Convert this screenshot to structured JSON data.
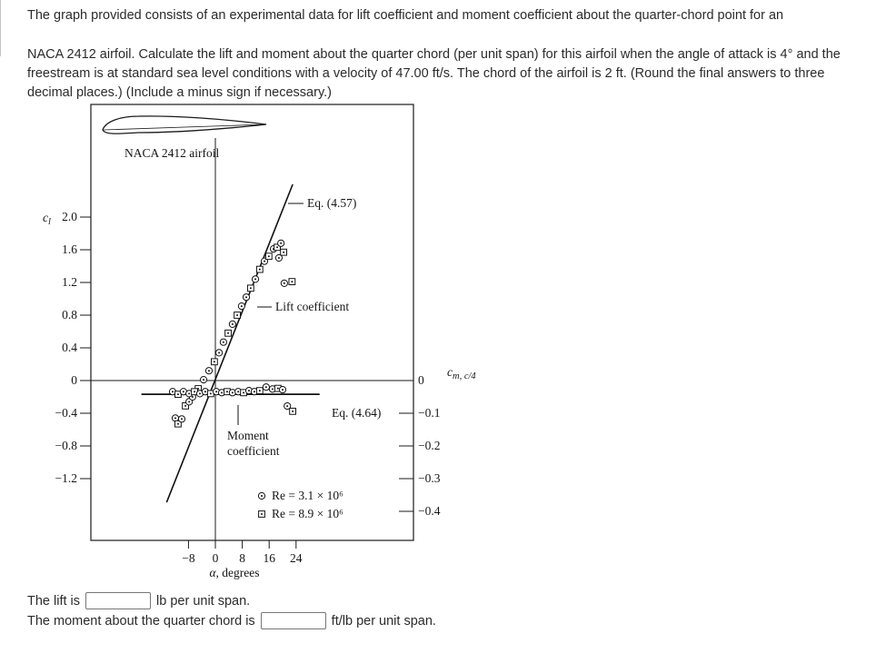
{
  "question": {
    "para1": "The graph provided consists of an experimental data for lift coefficient and moment coefficient about the quarter-chord point for an",
    "para2": "NACA 2412 airfoil. Calculate the lift and moment about the quarter chord (per unit span) for this airfoil when the angle of attack is 4° and the freestream is at standard sea level conditions with a velocity of 47.00 ft/s. The chord of the airfoil is 2 ft. (Round the final answers to three decimal places.) (Include a minus sign if necessary.)"
  },
  "answers": {
    "lift_prefix": "The lift is",
    "lift_suffix": "lb per unit span.",
    "lift_value": "",
    "moment_prefix": "The moment about the quarter chord is",
    "moment_suffix": "ft/lb per unit span.",
    "moment_value": ""
  },
  "chart_data": {
    "type": "scatter",
    "title": "NACA 2412 airfoil",
    "xlabel": "α, degrees",
    "ylabel_left": {
      "main": "c",
      "sub": "l"
    },
    "ylabel_right": {
      "main": "c",
      "sub": "m, c/4"
    },
    "x_tick_labels": [
      "−8",
      "0",
      "8",
      "16",
      "24"
    ],
    "x_tick_values": [
      -8,
      0,
      8,
      16,
      24
    ],
    "y_left_tick_labels": [
      "2.0",
      "1.6",
      "1.2",
      "0.8",
      "0.4",
      "0",
      "−0.4",
      "−0.8",
      "−1.2"
    ],
    "y_left_tick_values": [
      2.0,
      1.6,
      1.2,
      0.8,
      0.4,
      0,
      -0.4,
      -0.8,
      -1.2
    ],
    "y_right_tick_labels": [
      "0",
      "−0.1",
      "−0.2",
      "−0.3",
      "−0.4"
    ],
    "y_right_tick_values": [
      0,
      -0.1,
      -0.2,
      -0.3,
      -0.4
    ],
    "annotations": {
      "eq_lift": "Eq. (4.57)",
      "lift_label": "Lift coefficient",
      "moment_label_line1": "Moment",
      "moment_label_line2": "coefficient",
      "eq_moment": "Eq. (4.64)"
    },
    "legend": [
      {
        "marker": "circle-dot",
        "label": "Re = 3.1 × 10⁶"
      },
      {
        "marker": "square-dot",
        "label": "Re = 8.9 × 10⁶"
      }
    ],
    "lift_line_points_alpha_cl": [
      [
        -14.5,
        -1.49
      ],
      [
        23.0,
        2.4
      ]
    ],
    "moment_line": {
      "alpha_range": [
        -22,
        31
      ],
      "cm": -0.042
    },
    "lift_data": [
      [
        -11.9,
        -0.46,
        "c"
      ],
      [
        -11.1,
        -0.53,
        "s"
      ],
      [
        -10.0,
        -0.47,
        "c"
      ],
      [
        -8.9,
        -0.31,
        "s"
      ],
      [
        -7.8,
        -0.26,
        "c"
      ],
      [
        -6.8,
        -0.2,
        "c"
      ],
      [
        -5.1,
        -0.1,
        "s"
      ],
      [
        -3.5,
        0.01,
        "c"
      ],
      [
        -1.9,
        0.12,
        "c"
      ],
      [
        -0.3,
        0.23,
        "s"
      ],
      [
        1.1,
        0.34,
        "c"
      ],
      [
        2.4,
        0.47,
        "c"
      ],
      [
        3.8,
        0.58,
        "s"
      ],
      [
        5.1,
        0.69,
        "c"
      ],
      [
        6.5,
        0.8,
        "s"
      ],
      [
        7.8,
        0.91,
        "c"
      ],
      [
        9.2,
        1.02,
        "c"
      ],
      [
        10.5,
        1.13,
        "s"
      ],
      [
        11.9,
        1.24,
        "c"
      ],
      [
        13.2,
        1.36,
        "s"
      ],
      [
        14.6,
        1.46,
        "c"
      ],
      [
        15.9,
        1.52,
        "s"
      ],
      [
        17.3,
        1.61,
        "c"
      ],
      [
        18.4,
        1.63,
        "s"
      ],
      [
        19.5,
        1.68,
        "c"
      ],
      [
        20.3,
        1.57,
        "s"
      ],
      [
        18.9,
        1.5,
        "c"
      ],
      [
        20.5,
        1.19,
        "c"
      ],
      [
        22.8,
        1.21,
        "s"
      ]
    ],
    "moment_data": [
      [
        -12.7,
        -0.034,
        "c"
      ],
      [
        -11.1,
        -0.042,
        "s"
      ],
      [
        -9.5,
        -0.034,
        "c"
      ],
      [
        -7.8,
        -0.04,
        "c"
      ],
      [
        -6.2,
        -0.034,
        "s"
      ],
      [
        -4.6,
        -0.04,
        "c"
      ],
      [
        -3.0,
        -0.034,
        "c"
      ],
      [
        -1.4,
        -0.04,
        "s"
      ],
      [
        0.3,
        -0.034,
        "c"
      ],
      [
        1.9,
        -0.037,
        "c"
      ],
      [
        3.5,
        -0.034,
        "s"
      ],
      [
        5.1,
        -0.037,
        "c"
      ],
      [
        6.8,
        -0.034,
        "c"
      ],
      [
        8.4,
        -0.037,
        "s"
      ],
      [
        10.0,
        -0.031,
        "c"
      ],
      [
        11.6,
        -0.034,
        "c"
      ],
      [
        13.2,
        -0.031,
        "s"
      ],
      [
        15.1,
        -0.02,
        "c"
      ],
      [
        17.0,
        -0.026,
        "c"
      ],
      [
        18.6,
        -0.024,
        "s"
      ],
      [
        20.0,
        -0.028,
        "c"
      ],
      [
        21.4,
        -0.078,
        "c"
      ],
      [
        23.0,
        -0.094,
        "s"
      ]
    ]
  }
}
